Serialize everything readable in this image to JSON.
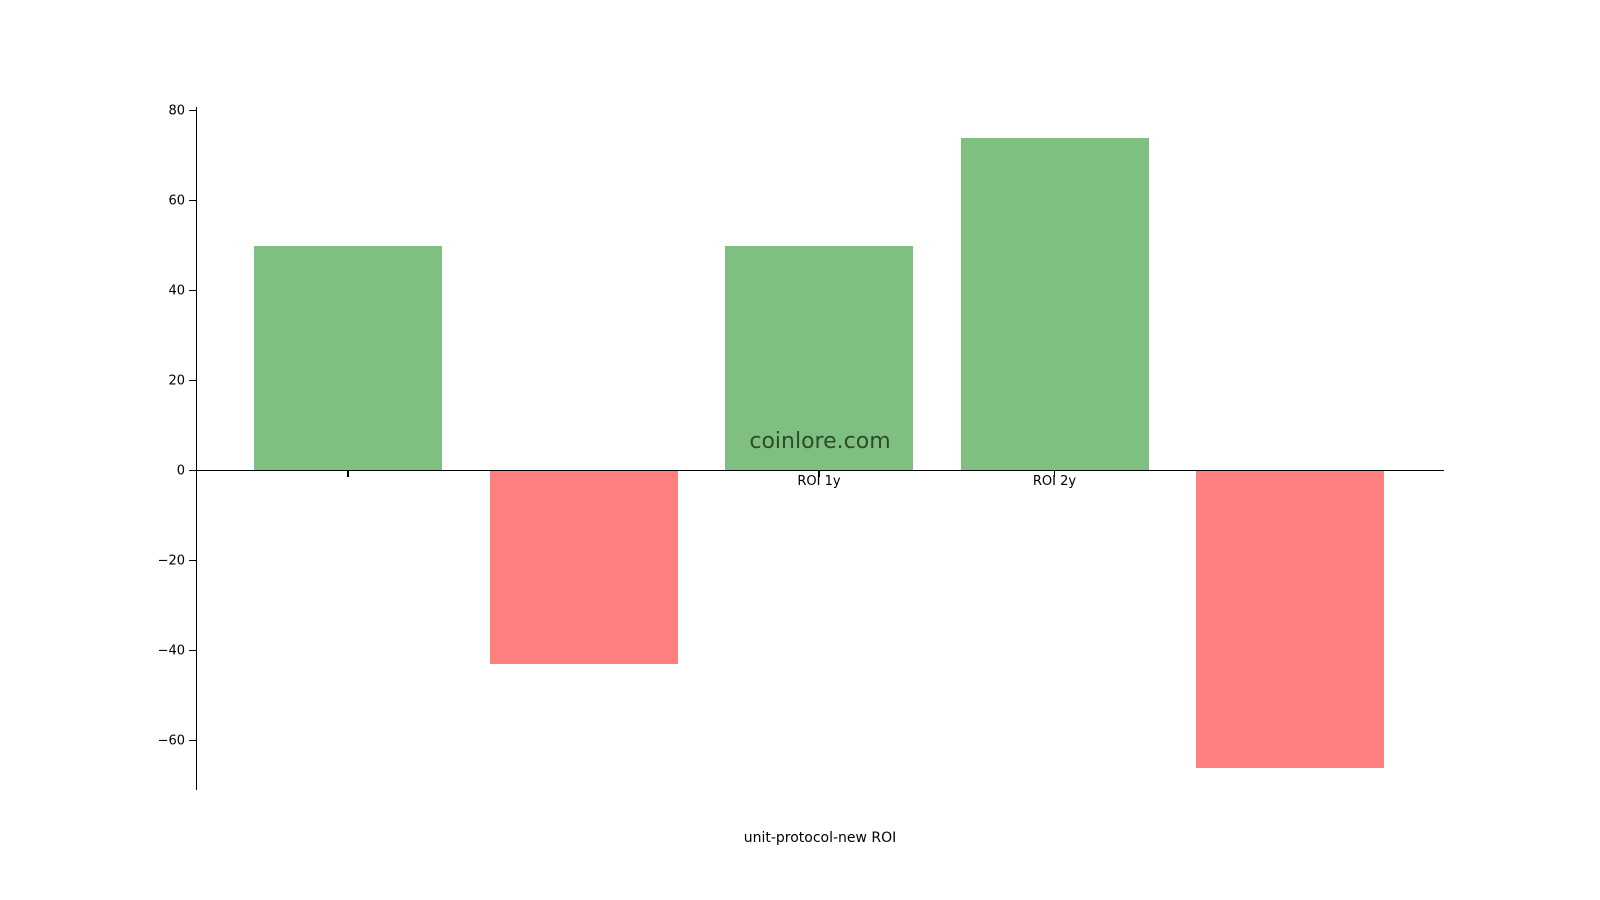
{
  "chart_data": {
    "type": "bar",
    "xlabel": "unit-protocol-new ROI",
    "watermark": "coinlore.com",
    "categories": [
      "",
      "",
      "ROI 1y",
      "ROI 2y",
      ""
    ],
    "values": [
      50,
      -43,
      50,
      74,
      -66
    ],
    "yticks": [
      80,
      60,
      40,
      20,
      0,
      -20,
      -40,
      -60
    ],
    "ytick_labels": [
      "80",
      "60",
      "40",
      "20",
      "0",
      "−20",
      "−40",
      "−60"
    ],
    "ylim": [
      -71,
      81
    ],
    "grid": false,
    "legend": null,
    "colors": {
      "positive_bar": "#7fbf7f",
      "negative_bar": "#ff7f7f",
      "axis": "#000000",
      "watermark_text": "rgba(0,10,0,0.65)",
      "background": "#ffffff"
    }
  }
}
